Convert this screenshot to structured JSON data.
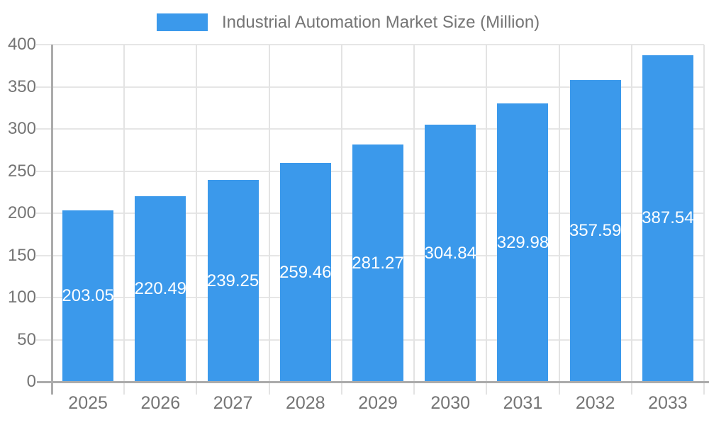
{
  "chart_data": {
    "type": "bar",
    "title": "Industrial Automation Market Size (Million)",
    "categories": [
      "2025",
      "2026",
      "2027",
      "2028",
      "2029",
      "2030",
      "2031",
      "2032",
      "2033"
    ],
    "values": [
      203.05,
      220.49,
      239.25,
      259.46,
      281.27,
      304.84,
      329.98,
      357.59,
      387.54
    ],
    "value_labels": [
      "203.05",
      "220.49",
      "239.25",
      "259.46",
      "281.27",
      "304.84",
      "329.98",
      "357.59",
      "387.54"
    ],
    "xlabel": "",
    "ylabel": "",
    "ylim": [
      0,
      400
    ],
    "y_ticks": [
      0,
      50,
      100,
      150,
      200,
      250,
      300,
      350,
      400
    ],
    "grid": true,
    "legend_position": "top",
    "value_label_position": "center-of-bar",
    "colors": {
      "bar": "#3b99eb",
      "gridline": "#e3e3e3",
      "axis_line": "#ababab",
      "axis_label_text": "#757575",
      "legend_text": "#757575",
      "value_label_text": "#ffffff",
      "background": "#ffffff"
    }
  }
}
